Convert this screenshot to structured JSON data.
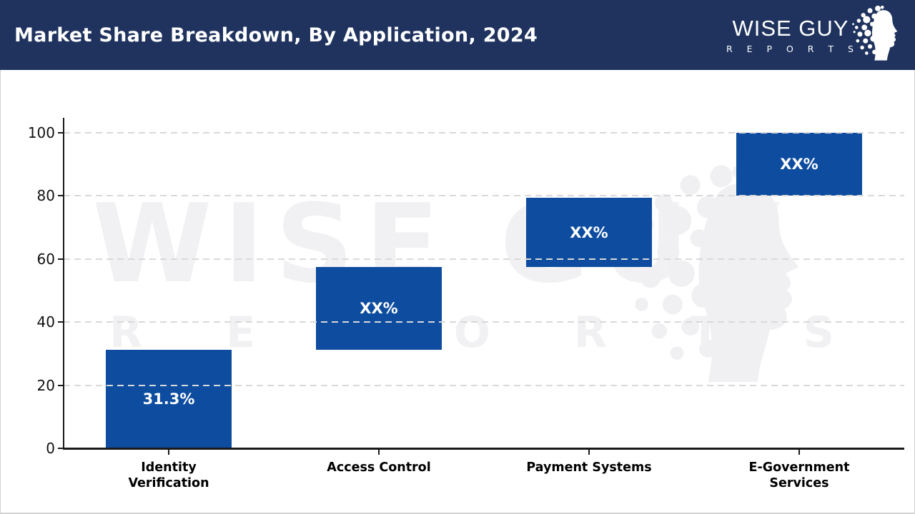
{
  "header": {
    "title": "Market Share Breakdown, By Application, 2024",
    "logo": {
      "wordmark": "WISE GUY",
      "subtext": "R E P O R T S"
    }
  },
  "watermark": {
    "wordmark": "WISE GUY",
    "subtext": "R E P O R T S"
  },
  "colors": {
    "header_bg": "#1f335e",
    "header_text": "#ffffff",
    "bar": "#0d4c9f",
    "bar_label_text": "#ffffff",
    "grid": "#d9d9d9",
    "axis": "#1a1a1a",
    "tick_text": "#111111",
    "watermark": "#f1f1f4"
  },
  "chart_data": {
    "type": "bar",
    "subtype": "waterfall",
    "title": "Market Share Breakdown, By Application, 2024",
    "xlabel": "",
    "ylabel": "",
    "ylim": [
      0,
      105
    ],
    "yticks": [
      0,
      20,
      40,
      60,
      80,
      100
    ],
    "grid": "horizontal-dashed",
    "legend": "none",
    "categories": [
      "Identity Verification",
      "Access Control",
      "Payment Systems",
      "E-Government Services"
    ],
    "segments": [
      {
        "category": "Identity Verification",
        "label_lines": [
          "Identity",
          "Verification"
        ],
        "from": 0,
        "to": 31.3,
        "displayed_value": "31.3%"
      },
      {
        "category": "Access Control",
        "label_lines": [
          "Access Control"
        ],
        "from": 31.3,
        "to": 57.5,
        "displayed_value": "XX%"
      },
      {
        "category": "Payment Systems",
        "label_lines": [
          "Payment Systems"
        ],
        "from": 57.5,
        "to": 79.3,
        "displayed_value": "XX%"
      },
      {
        "category": "E-Government Services",
        "label_lines": [
          "E-Government",
          "Services"
        ],
        "from": 80,
        "to": 100,
        "displayed_value": "XX%"
      }
    ]
  }
}
